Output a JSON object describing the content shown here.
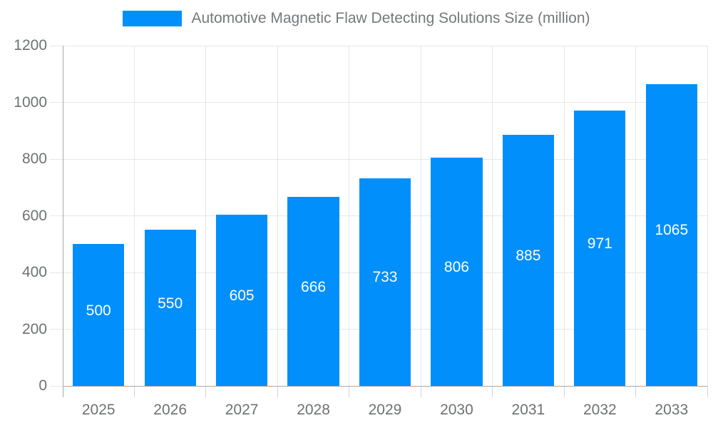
{
  "chart_data": {
    "type": "bar",
    "title": "Automotive Magnetic Flaw Detecting Solutions Size (million)",
    "categories": [
      "2025",
      "2026",
      "2027",
      "2028",
      "2029",
      "2030",
      "2031",
      "2032",
      "2033"
    ],
    "values": [
      500,
      550,
      605,
      666,
      733,
      806,
      885,
      971,
      1065
    ],
    "series_name": "Automotive Magnetic Flaw Detecting Solutions Size (million)",
    "xlabel": "",
    "ylabel": "",
    "ylim": [
      0,
      1200
    ],
    "yticks": [
      0,
      200,
      400,
      600,
      800,
      1000,
      1200
    ],
    "grid": "on",
    "legend_position": "top-center",
    "colors": {
      "bar": "#008FFB",
      "bar_value_label": "#ffffff",
      "axis_text": "#6e7173",
      "legend_text": "#75787b",
      "gridline": "#e7e7e7",
      "axis_line": "#a8a8a8",
      "tick": "#d4d4d4",
      "background": "#ffffff"
    }
  }
}
